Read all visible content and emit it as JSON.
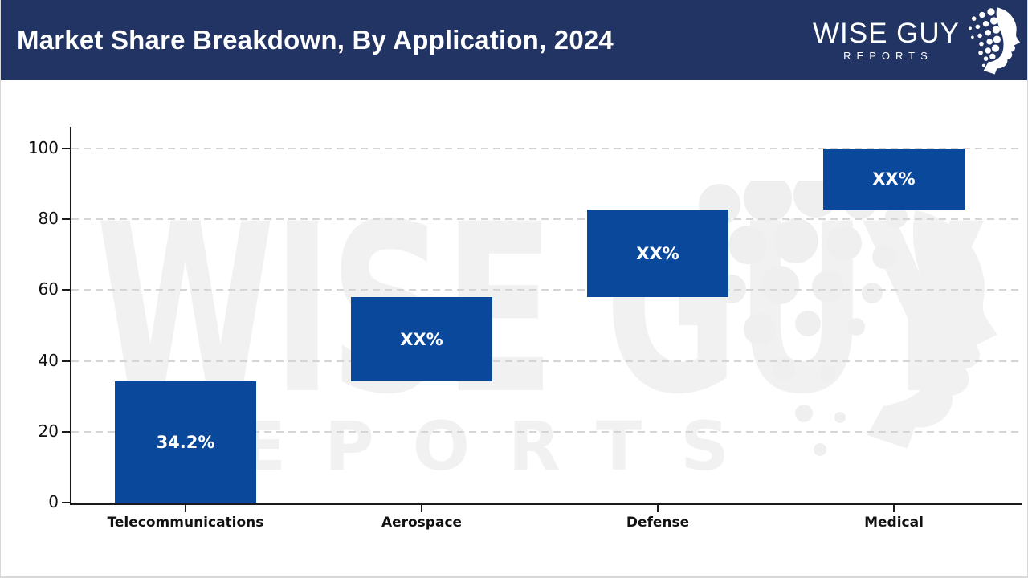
{
  "header": {
    "title": "Market Share Breakdown, By Application, 2024",
    "logo": {
      "line1": "WISE GUY",
      "line2": "REPORTS"
    }
  },
  "watermark": {
    "line1": "WISE GUY",
    "line2": "REPORTS"
  },
  "colors": {
    "header_bg": "#213463",
    "bar": "#0a489c",
    "bar_label": "#ffffff",
    "gridline": "#d5d5d5",
    "axis": "#1a1a1a",
    "watermark": "#f1f1f1",
    "title_text": "#ffffff"
  },
  "chart_data": {
    "type": "bar",
    "subtype": "floating_waterfall",
    "title": "Market Share Breakdown, By Application, 2024",
    "categories": [
      "Telecommunications",
      "Aerospace",
      "Defense",
      "Medical"
    ],
    "segments": [
      {
        "category": "Telecommunications",
        "start": 0,
        "end": 34.2,
        "label": "34.2%"
      },
      {
        "category": "Aerospace",
        "start": 34.2,
        "end": 58.0,
        "label": "XX%"
      },
      {
        "category": "Defense",
        "start": 58.0,
        "end": 82.8,
        "label": "XX%"
      },
      {
        "category": "Medical",
        "start": 82.8,
        "end": 100.0,
        "label": "XX%"
      }
    ],
    "xlabel": "",
    "ylabel": "",
    "ylim": [
      0,
      100
    ],
    "yticks": [
      0,
      20,
      40,
      60,
      80,
      100
    ],
    "grid": "horizontal-dashed",
    "legend": "none"
  }
}
